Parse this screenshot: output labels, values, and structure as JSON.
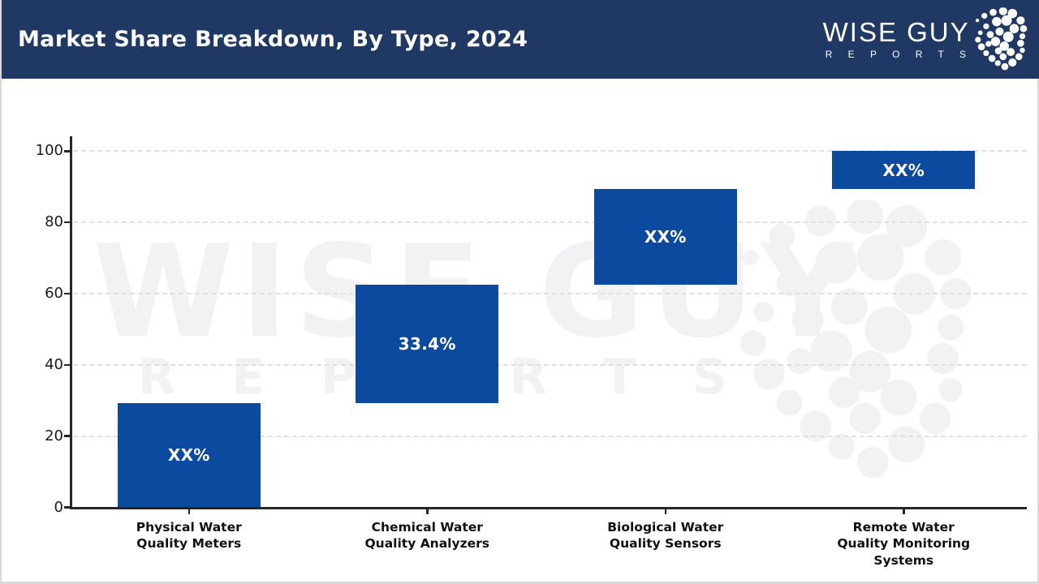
{
  "header": {
    "title": "Market Share Breakdown, By Type, 2024",
    "logo": {
      "name": "WISE GUY",
      "sub": "R E P O R T S"
    }
  },
  "watermark": {
    "line1": "WISE GUY",
    "line2": "R E P O R T S"
  },
  "chart_data": {
    "type": "bar",
    "subtype": "waterfall",
    "title": "Market Share Breakdown, By Type, 2024",
    "xlabel": "",
    "ylabel": "",
    "ylim": [
      0,
      104
    ],
    "yticks": [
      0,
      20,
      40,
      60,
      80,
      100
    ],
    "grid": "horizontal-dashed",
    "legend": "none",
    "bar_color": "#0b4a9e",
    "categories": [
      "Physical Water Quality Meters",
      "Chemical Water Quality Analyzers",
      "Biological Water Quality Sensors",
      "Remote Water Quality Monitoring Systems"
    ],
    "category_lines": [
      [
        "Physical Water",
        "Quality Meters"
      ],
      [
        "Chemical Water",
        "Quality Analyzers"
      ],
      [
        "Biological Water",
        "Quality Sensors"
      ],
      [
        "Remote Water",
        "Quality Monitoring",
        "Systems"
      ]
    ],
    "segments": [
      {
        "category": "Physical Water Quality Meters",
        "label": "XX%",
        "start": 0,
        "end": 29.2
      },
      {
        "category": "Chemical Water Quality Analyzers",
        "label": "33.4%",
        "start": 29.2,
        "end": 62.6
      },
      {
        "category": "Biological Water Quality Sensors",
        "label": "XX%",
        "start": 62.6,
        "end": 89.4
      },
      {
        "category": "Remote Water Quality Monitoring Systems",
        "label": "XX%",
        "start": 89.4,
        "end": 100
      }
    ]
  }
}
